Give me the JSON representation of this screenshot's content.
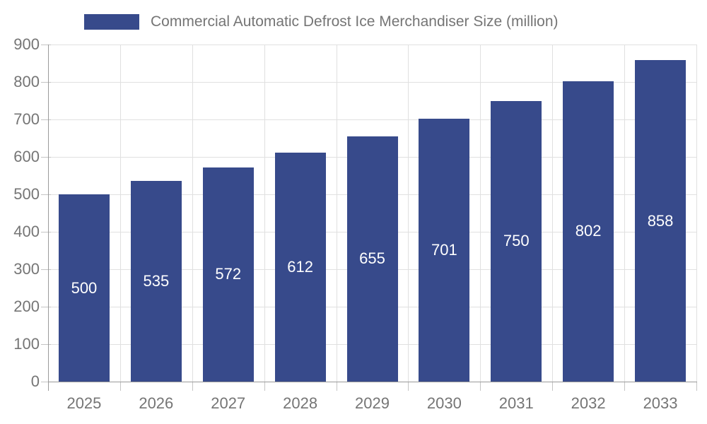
{
  "chart_data": {
    "type": "bar",
    "title": "Commercial Automatic Defrost Ice Merchandiser Size (million)",
    "categories": [
      "2025",
      "2026",
      "2027",
      "2028",
      "2029",
      "2030",
      "2031",
      "2032",
      "2033"
    ],
    "values": [
      500,
      535,
      572,
      612,
      655,
      701,
      750,
      802,
      858
    ],
    "xlabel": "",
    "ylabel": "",
    "ylim": [
      0,
      900
    ],
    "y_ticks": [
      0,
      100,
      200,
      300,
      400,
      500,
      600,
      700,
      800,
      900
    ],
    "grid": true,
    "legend_position": "top",
    "value_labels": "inside-center",
    "colors": {
      "bar": "#374A8B",
      "value_label": "#ffffff",
      "axis_line": "#9a9a9a",
      "grid_line": "#e0e0e0",
      "tick_mark": "#c4c4c4",
      "tick_label": "#757575",
      "legend_text": "#757575"
    }
  }
}
